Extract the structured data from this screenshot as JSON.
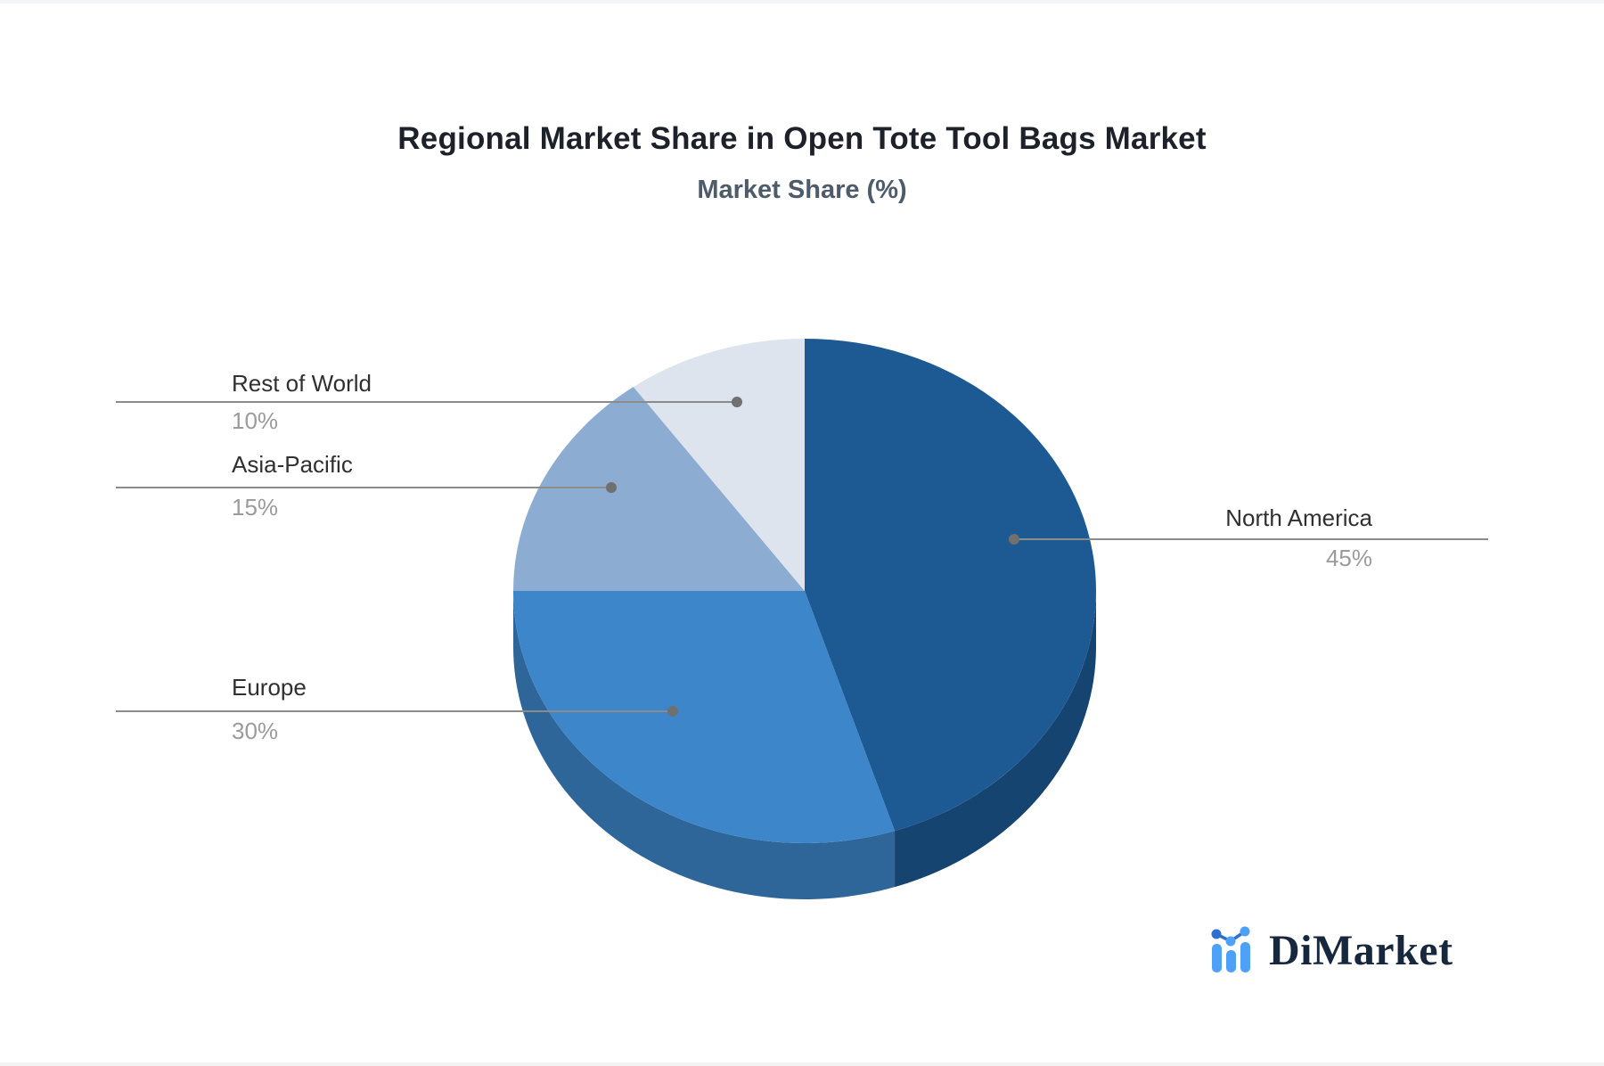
{
  "header": {
    "title": "Regional Market Share in Open Tote Tool Bags Market",
    "subtitle": "Market Share (%)"
  },
  "chart_data": {
    "type": "pie",
    "title": "Regional Market Share in Open Tote Tool Bags Market",
    "subtitle": "Market Share (%)",
    "unit": "%",
    "effect": "3d",
    "start_angle_deg": 90,
    "direction": "clockwise",
    "legend": "none",
    "labels_position": "outside-leader-lines",
    "categories": [
      "North America",
      "Europe",
      "Asia-Pacific",
      "Rest of World"
    ],
    "values": [
      45,
      30,
      15,
      10
    ],
    "slices": [
      {
        "label": "North America",
        "value": 45,
        "display": "45%",
        "color": "#1d5a94"
      },
      {
        "label": "Europe",
        "value": 30,
        "display": "30%",
        "color": "#3d86c9"
      },
      {
        "label": "Asia-Pacific",
        "value": 15,
        "display": "15%",
        "color": "#8cacd2"
      },
      {
        "label": "Rest of World",
        "value": 10,
        "display": "10%",
        "color": "#dde4ee"
      }
    ]
  },
  "colors": {
    "title_text": "#1d2129",
    "subtitle_text": "#4d5b6a",
    "label_text": "#303030",
    "pct_text": "#9b9b9b",
    "leader_line": "#8b8b8b",
    "leader_dot": "#707070"
  },
  "branding": {
    "logo_text": "DiMarket",
    "logo_icon": "bar-line-chart-icon",
    "logo_text_color": "#17273e",
    "logo_bar_color": "#4da2f7",
    "logo_accent_color": "#2f6fd0"
  }
}
